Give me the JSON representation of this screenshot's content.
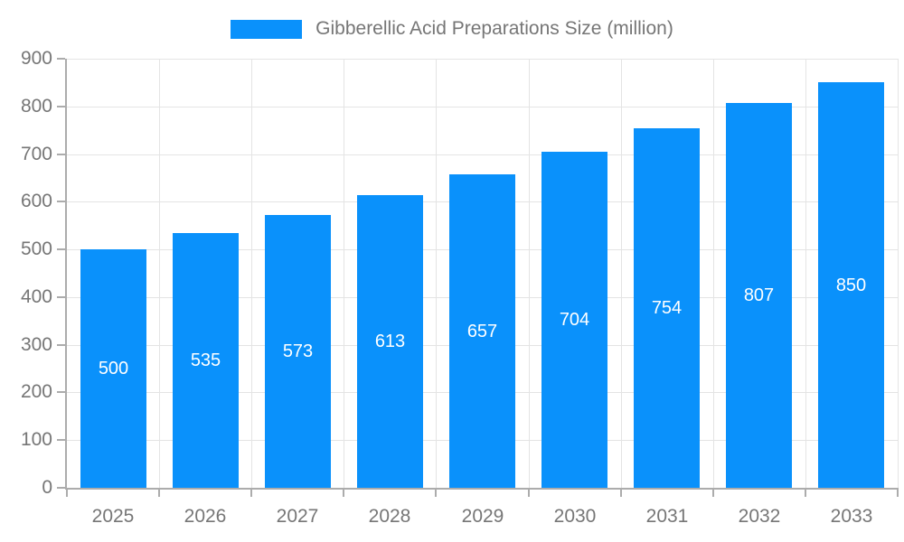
{
  "chart_data": {
    "type": "bar",
    "title": "Gibberellic Acid Preparations Size (million)",
    "categories": [
      "2025",
      "2026",
      "2027",
      "2028",
      "2029",
      "2030",
      "2031",
      "2032",
      "2033"
    ],
    "values": [
      500,
      535,
      573,
      613,
      657,
      704,
      754,
      807,
      850
    ],
    "xlabel": "",
    "ylabel": "",
    "ylim": [
      0,
      900
    ],
    "yticks": [
      0,
      100,
      200,
      300,
      400,
      500,
      600,
      700,
      800,
      900
    ],
    "grid": true,
    "legend_position": "top-center",
    "value_labels": "inside-center",
    "colors": {
      "bar": "#0A91FB",
      "axis": "#ACACAC",
      "grid": "#E4E4E4",
      "text": "#767676",
      "value_label": "#FFFFFF",
      "background": "#FFFFFF"
    }
  }
}
